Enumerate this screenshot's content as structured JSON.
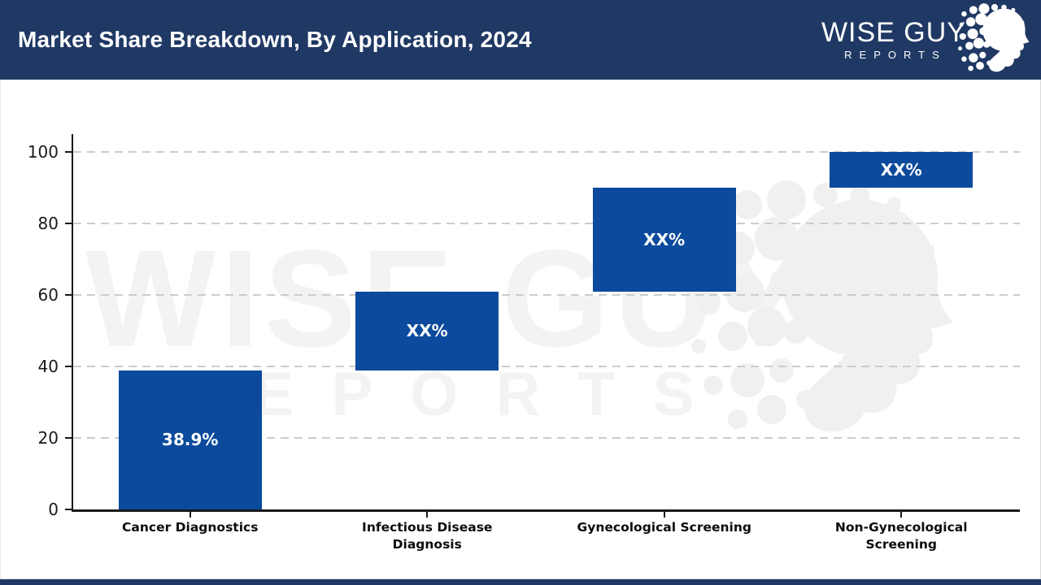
{
  "header": {
    "title": "Market Share Breakdown, By Application, 2024",
    "logo": {
      "line1": "WISE GUY",
      "line2": "REPORTS",
      "icon": "head-dots-icon"
    }
  },
  "watermark": {
    "line1": "WISE GUY",
    "line2": "REPORTS",
    "icon": "head-dots-icon"
  },
  "colors": {
    "header_bg": "#1F3864",
    "footer_bg": "#1F3864",
    "bar": "#0B4A9C",
    "bar_label": "#FFFFFF",
    "grid": "#CCCCCC",
    "axis": "#1A1A1A",
    "watermark": "#F3F3F3"
  },
  "chart_data": {
    "type": "bar",
    "subtype": "floating-segment-waterfall",
    "title": "Market Share Breakdown, By Application, 2024",
    "categories": [
      "Cancer Diagnostics",
      "Infectious Disease Diagnosis",
      "Gynecological Screening",
      "Non-Gynecological Screening"
    ],
    "series": [
      {
        "name": "Market Share",
        "segments": [
          {
            "start": 0,
            "end": 38.9,
            "label": "38.9%"
          },
          {
            "start": 38.9,
            "end": 61,
            "label": "XX%"
          },
          {
            "start": 61,
            "end": 90,
            "label": "XX%"
          },
          {
            "start": 90,
            "end": 100,
            "label": "XX%"
          }
        ]
      }
    ],
    "xlabel": "",
    "ylabel": "",
    "ylim": [
      0,
      100
    ],
    "yticks": [
      0,
      20,
      40,
      60,
      80,
      100
    ],
    "grid": "dashed-horizontal",
    "legend": "none"
  }
}
